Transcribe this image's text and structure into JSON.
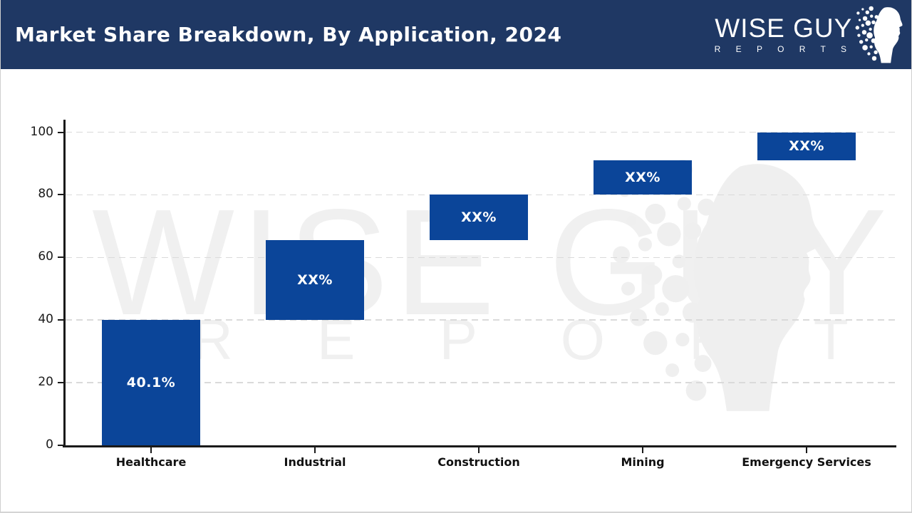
{
  "header": {
    "title": "Market Share Breakdown, By Application, 2024",
    "logo": {
      "line1": "WISE GUY",
      "line2": "R E P O R T S"
    }
  },
  "watermark": {
    "line1": "WISE GUY",
    "line2": "R E P O R T S"
  },
  "colors": {
    "header_bg": "#1f3864",
    "bar": "#0b4599",
    "grid": "#dadada",
    "axis": "#1a1a1a",
    "bar_label_text": "#ffffff",
    "watermark": "#f0f0f0"
  },
  "icons": {
    "logo_mark": "wiseguy-dotted-face"
  },
  "chart_data": {
    "type": "bar",
    "variant": "waterfall",
    "title": "Market Share Breakdown, By Application, 2024",
    "categories": [
      "Healthcare",
      "Industrial",
      "Construction",
      "Mining",
      "Emergency Services"
    ],
    "segments": [
      {
        "category": "Healthcare",
        "start": 0,
        "end": 40.1,
        "label": "40.1%"
      },
      {
        "category": "Industrial",
        "start": 40.1,
        "end": 65.6,
        "label": "XX%"
      },
      {
        "category": "Construction",
        "start": 65.6,
        "end": 80.0,
        "label": "XX%"
      },
      {
        "category": "Mining",
        "start": 80.0,
        "end": 91.0,
        "label": "XX%"
      },
      {
        "category": "Emergency Services",
        "start": 91.0,
        "end": 100.0,
        "label": "XX%"
      }
    ],
    "xlabel": "",
    "ylabel": "",
    "yticks": [
      0,
      20,
      40,
      60,
      80,
      100
    ],
    "ylim": [
      0,
      103.8
    ],
    "grid": "horizontal-dashed",
    "legend": "none",
    "bar_color": "#0b4599"
  }
}
